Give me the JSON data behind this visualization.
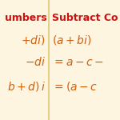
{
  "bg_color": "#fdf5e0",
  "border_color": "#e0c870",
  "header_color": "#cc1111",
  "text_color": "#d06010",
  "title1": "umbers",
  "title2": "Subtract Co",
  "left_lines": [
    "$+ di)$",
    "$- di$",
    "$b + d)\\,i$"
  ],
  "right_lines": [
    "$(a + bi)$",
    "$= a - c -$",
    "$= (a - c$"
  ],
  "figsize": [
    1.5,
    1.5
  ],
  "dpi": 100
}
